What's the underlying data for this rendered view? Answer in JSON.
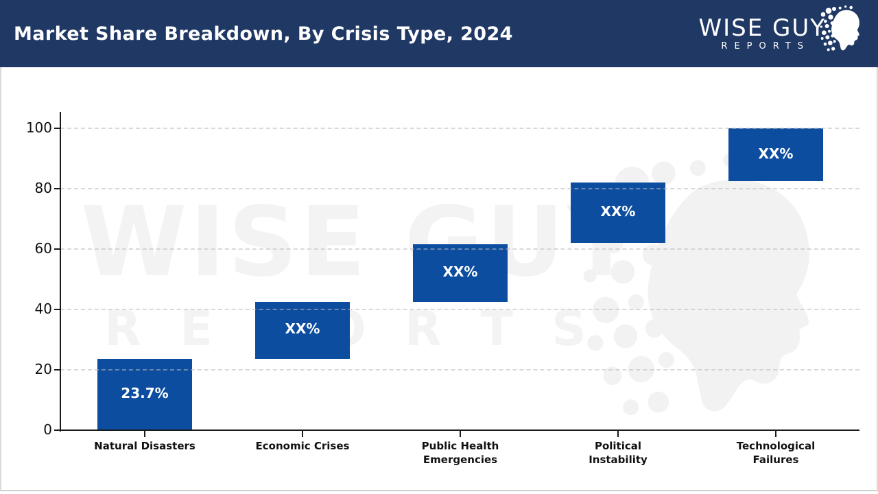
{
  "header": {
    "title": "Market Share Breakdown, By Crisis Type, 2024",
    "bg_color": "#1f3864",
    "logo": {
      "line1": "WISE GUY",
      "line2": "REPORTS"
    }
  },
  "watermark": {
    "line1": "WISE GUY",
    "line2": "R E P O R T S"
  },
  "chart_data": {
    "type": "bar",
    "subtype": "waterfall",
    "title": "Market Share Breakdown, By Crisis Type, 2024",
    "xlabel": "",
    "ylabel": "",
    "ylim": [
      0,
      100
    ],
    "yticks": [
      0,
      20,
      40,
      60,
      80,
      100
    ],
    "grid": "horizontal dashed, drawn over bars",
    "bar_color": "#0d4da0",
    "label_color": "#ffffff",
    "bars": [
      {
        "category_lines": [
          "Natural Disasters"
        ],
        "label": "23.7%",
        "start": 0,
        "end": 23.7
      },
      {
        "category_lines": [
          "Economic Crises"
        ],
        "label": "XX%",
        "start": 23.7,
        "end": 42.5
      },
      {
        "category_lines": [
          "Public Health",
          "Emergencies"
        ],
        "label": "XX%",
        "start": 42.5,
        "end": 61.5
      },
      {
        "category_lines": [
          "Political",
          "Instability"
        ],
        "label": "XX%",
        "start": 62,
        "end": 82
      },
      {
        "category_lines": [
          "Technological",
          "Failures"
        ],
        "label": "XX%",
        "start": 82.5,
        "end": 100
      }
    ]
  }
}
